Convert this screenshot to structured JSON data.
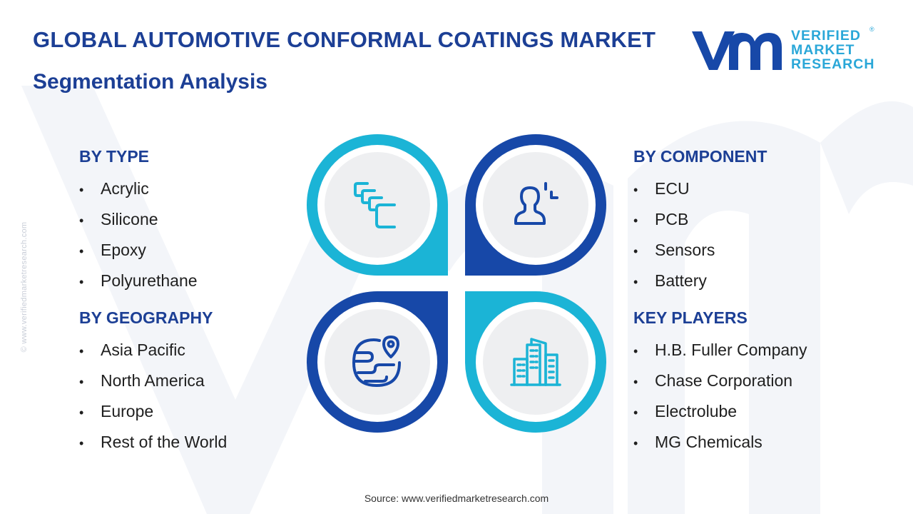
{
  "header": {
    "title": "GLOBAL AUTOMOTIVE CONFORMAL COATINGS MARKET",
    "subtitle": "Segmentation Analysis"
  },
  "logo": {
    "line1": "VERIFIED",
    "line2": "MARKET",
    "line3": "RESEARCH",
    "registered": "®"
  },
  "side_watermark": "© www.verifiedmarketresearch.com",
  "segments": {
    "by_type": {
      "heading": "BY TYPE",
      "items": [
        "Acrylic",
        "Silicone",
        "Epoxy",
        "Polyurethane"
      ]
    },
    "by_geography": {
      "heading": "BY GEOGRAPHY",
      "items": [
        "Asia Pacific",
        "North America",
        "Europe",
        "Rest of the World"
      ]
    },
    "by_component": {
      "heading": "BY COMPONENT",
      "items": [
        "ECU",
        "PCB",
        "Sensors",
        "Battery"
      ]
    },
    "key_players": {
      "heading": "KEY PLAYERS",
      "items": [
        "H.B. Fuller Company",
        "Chase Corporation",
        "Electrolube",
        "MG Chemicals"
      ]
    }
  },
  "icons": {
    "type": "layers-icon",
    "component": "user-component-icon",
    "geography": "globe-pin-icon",
    "key_players": "buildings-icon"
  },
  "colors": {
    "navy": "#1c3f95",
    "petal_cyan": "#1bb4d6",
    "petal_blue": "#1748a8",
    "logo_cyan": "#2aa7d8"
  },
  "footer": {
    "source": "Source: www.verifiedmarketresearch.com"
  }
}
